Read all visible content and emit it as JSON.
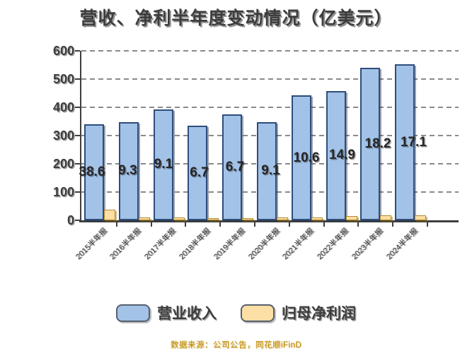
{
  "title": "营收、净利半年度变动情况（亿美元）",
  "y_axis": {
    "tick_labels": [
      "600",
      "500",
      "400",
      "300",
      "200",
      "100",
      "0"
    ]
  },
  "chart_data": {
    "type": "bar",
    "title": "营收、净利半年度变动情况（亿美元）",
    "categories": [
      "2015半年报",
      "2016半年报",
      "2017半年报",
      "2018半年报",
      "2019半年报",
      "2020半年报",
      "2021半年报",
      "2022半年报",
      "2023半年报",
      "2024半年报"
    ],
    "series": [
      {
        "name": "营业收入",
        "values": [
          340,
          348,
          393,
          336,
          375,
          348,
          442,
          458,
          539,
          552
        ],
        "color": "#a3c2e8",
        "border_color": "#2e4d7b"
      },
      {
        "name": "归母净利润",
        "values": [
          38.6,
          9.3,
          9.1,
          6.7,
          6.7,
          9.1,
          10.6,
          14.9,
          18.2,
          17.1
        ],
        "data_labels": [
          "38.6",
          "9.3",
          "9.1",
          "6.7",
          "6.7",
          "9.1",
          "10.6",
          "14.9",
          "18.2",
          "17.1"
        ],
        "color": "#fcdfa4",
        "border_color": "#b08a2e"
      }
    ],
    "ylim": [
      0,
      600
    ],
    "grid": "horizontal-dashed",
    "legend_position": "bottom"
  },
  "legend": {
    "items": [
      {
        "label": "营业收入",
        "color": "#a3c2e8"
      },
      {
        "label": "归母净利润",
        "color": "#fcdfa4"
      }
    ]
  },
  "footer": {
    "source_caption": "数据来源：公司公告，同花顺iFinD"
  }
}
